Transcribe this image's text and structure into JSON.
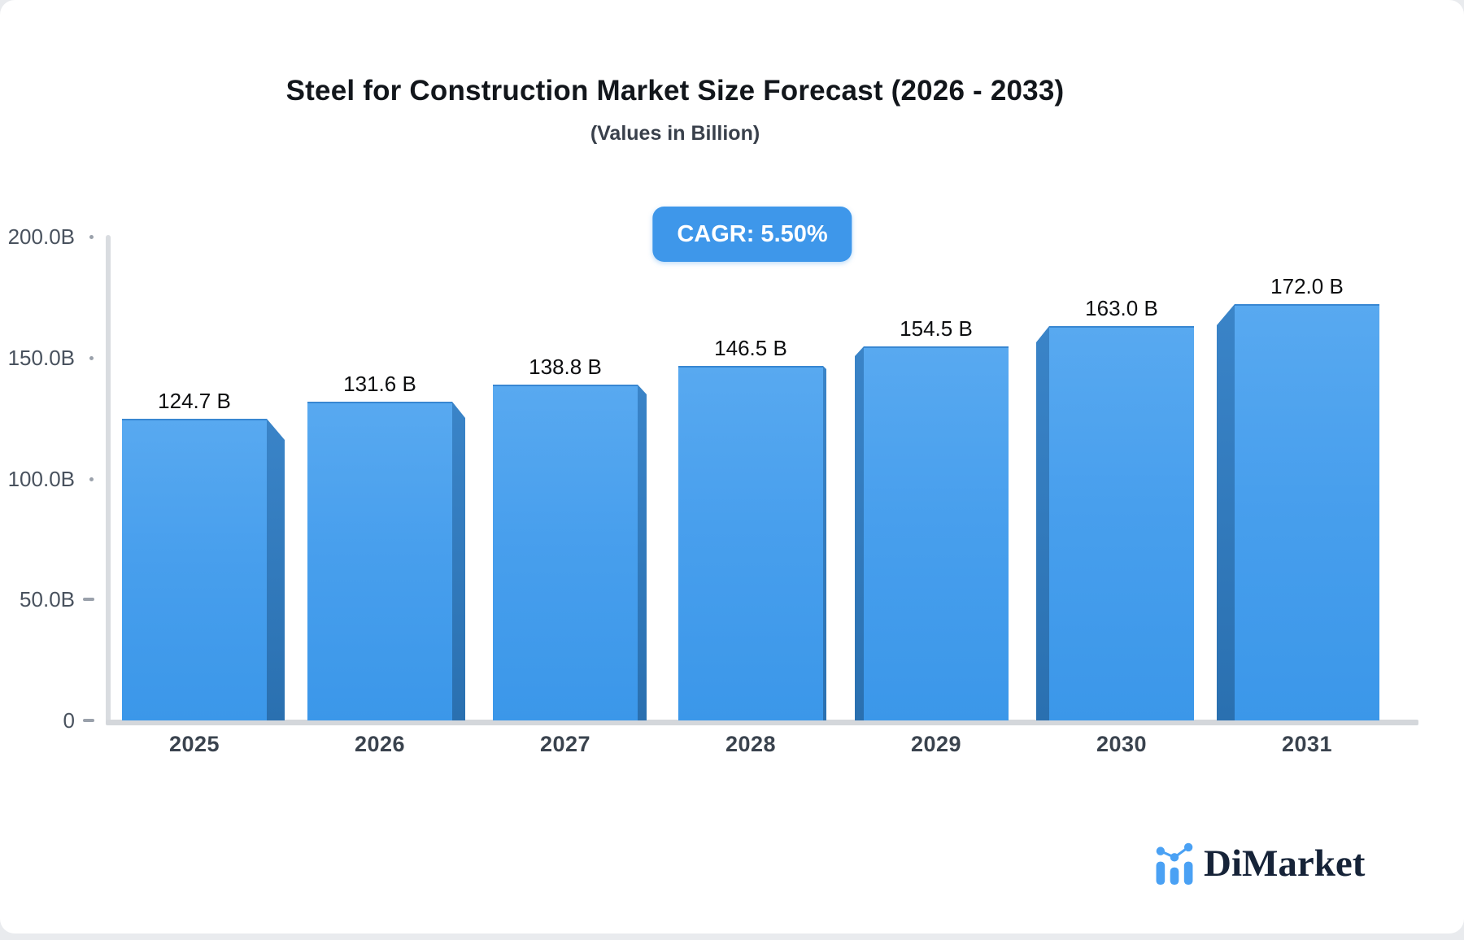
{
  "header": {
    "title": "Steel for Construction Market Size Forecast (2026 - 2033)",
    "subtitle": "(Values in Billion)",
    "cagr_badge": "CAGR: 5.50%"
  },
  "chart_data": {
    "type": "bar",
    "title": "Steel for Construction Market Size Forecast (2026 - 2033)",
    "subtitle": "(Values in Billion)",
    "cagr_text": "CAGR: 5.50%",
    "cagr_value_percent": 5.5,
    "unit": "Billion",
    "categories": [
      "2025",
      "2026",
      "2027",
      "2028",
      "2029",
      "2030",
      "2031"
    ],
    "values": [
      124.7,
      131.6,
      138.8,
      146.5,
      154.5,
      163.0,
      172.0
    ],
    "bar_value_labels": [
      "124.7 B",
      "131.6 B",
      "138.8 B",
      "146.5 B",
      "154.5 B",
      "163.0 B",
      "172.0 B"
    ],
    "ylim": [
      0,
      200
    ],
    "yticks": [
      {
        "label": "200.0B",
        "value": 200,
        "mark": "dot"
      },
      {
        "label": "150.0B",
        "value": 150,
        "mark": "dot"
      },
      {
        "label": "100.0B",
        "value": 100,
        "mark": "dot"
      },
      {
        "label": "50.0B",
        "value": 50,
        "mark": "dash"
      },
      {
        "label": "0",
        "value": 0,
        "mark": "dash"
      }
    ],
    "grid": false,
    "legend": false,
    "colors": {
      "bar_face_top": "#58a9f0",
      "bar_face_bottom": "#3b97e9",
      "bar_side": "#2d76b9",
      "bar_top_edge": "#3887d2",
      "axis_line": "#d6d9dd",
      "tick": "#9aa1ab",
      "badge_accent": "#3e97ea"
    }
  },
  "logo": {
    "text": "DiMarket",
    "icon": "mini-bar-chart-icon",
    "icon_color": "#4aa1f4",
    "text_color": "#162338"
  }
}
